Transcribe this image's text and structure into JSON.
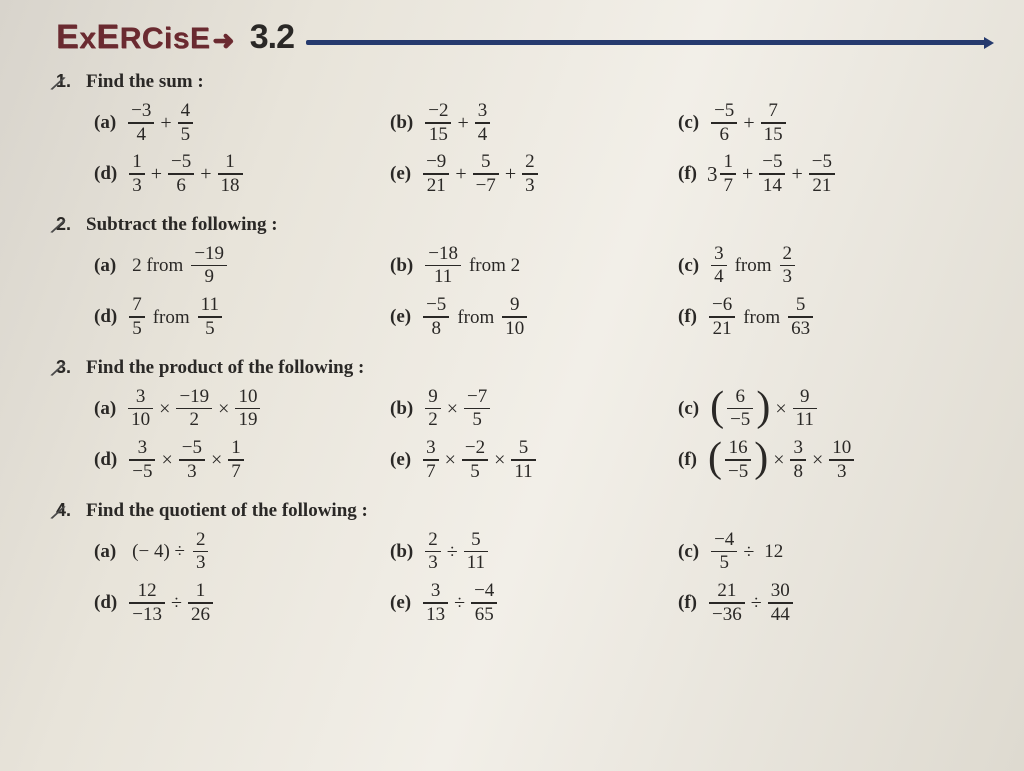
{
  "header": {
    "title_word": "ExERCisE",
    "number": "3.2",
    "title_color": "#6a2a30",
    "rule_color": "#263a6e"
  },
  "questions": [
    {
      "num": "1.",
      "prompt": "Find the sum :",
      "items": [
        {
          "l": "(a)",
          "expr": [
            {
              "t": "frac",
              "n": "−3",
              "d": "4"
            },
            {
              "t": "op",
              "v": "+"
            },
            {
              "t": "frac",
              "n": "4",
              "d": "5"
            }
          ]
        },
        {
          "l": "(b)",
          "expr": [
            {
              "t": "frac",
              "n": "−2",
              "d": "15"
            },
            {
              "t": "op",
              "v": "+"
            },
            {
              "t": "frac",
              "n": "3",
              "d": "4"
            }
          ]
        },
        {
          "l": "(c)",
          "expr": [
            {
              "t": "frac",
              "n": "−5",
              "d": "6"
            },
            {
              "t": "op",
              "v": "+"
            },
            {
              "t": "frac",
              "n": "7",
              "d": "15"
            }
          ]
        },
        {
          "l": "(d)",
          "expr": [
            {
              "t": "frac",
              "n": "1",
              "d": "3"
            },
            {
              "t": "op",
              "v": "+"
            },
            {
              "t": "frac",
              "n": "−5",
              "d": "6"
            },
            {
              "t": "op",
              "v": "+"
            },
            {
              "t": "frac",
              "n": "1",
              "d": "18"
            }
          ]
        },
        {
          "l": "(e)",
          "expr": [
            {
              "t": "frac",
              "n": "−9",
              "d": "21"
            },
            {
              "t": "op",
              "v": "+"
            },
            {
              "t": "frac",
              "n": "5",
              "d": "−7"
            },
            {
              "t": "op",
              "v": "+"
            },
            {
              "t": "frac",
              "n": "2",
              "d": "3"
            }
          ]
        },
        {
          "l": "(f)",
          "expr": [
            {
              "t": "mixed",
              "w": "3",
              "n": "1",
              "d": "7"
            },
            {
              "t": "op",
              "v": "+"
            },
            {
              "t": "frac",
              "n": "−5",
              "d": "14"
            },
            {
              "t": "op",
              "v": "+"
            },
            {
              "t": "frac",
              "n": "−5",
              "d": "21"
            }
          ]
        }
      ]
    },
    {
      "num": "2.",
      "prompt": "Subtract the following :",
      "items": [
        {
          "l": "(a)",
          "expr": [
            {
              "t": "txt",
              "v": "2 from"
            },
            {
              "t": "frac",
              "n": "−19",
              "d": "9"
            }
          ]
        },
        {
          "l": "(b)",
          "expr": [
            {
              "t": "frac",
              "n": "−18",
              "d": "11"
            },
            {
              "t": "txt",
              "v": "from 2"
            }
          ]
        },
        {
          "l": "(c)",
          "expr": [
            {
              "t": "frac",
              "n": "3",
              "d": "4"
            },
            {
              "t": "txt",
              "v": "from"
            },
            {
              "t": "frac",
              "n": "2",
              "d": "3"
            }
          ]
        },
        {
          "l": "(d)",
          "expr": [
            {
              "t": "frac",
              "n": "7",
              "d": "5"
            },
            {
              "t": "txt",
              "v": "from"
            },
            {
              "t": "frac",
              "n": "11",
              "d": "5"
            }
          ]
        },
        {
          "l": "(e)",
          "expr": [
            {
              "t": "frac",
              "n": "−5",
              "d": "8"
            },
            {
              "t": "txt",
              "v": "from"
            },
            {
              "t": "frac",
              "n": "9",
              "d": "10"
            }
          ]
        },
        {
          "l": "(f)",
          "expr": [
            {
              "t": "frac",
              "n": "−6",
              "d": "21"
            },
            {
              "t": "txt",
              "v": "from"
            },
            {
              "t": "frac",
              "n": "5",
              "d": "63"
            }
          ]
        }
      ]
    },
    {
      "num": "3.",
      "prompt": "Find the product of the following :",
      "items": [
        {
          "l": "(a)",
          "expr": [
            {
              "t": "frac",
              "n": "3",
              "d": "10"
            },
            {
              "t": "op",
              "v": "×"
            },
            {
              "t": "frac",
              "n": "−19",
              "d": "2"
            },
            {
              "t": "op",
              "v": "×"
            },
            {
              "t": "frac",
              "n": "10",
              "d": "19"
            }
          ]
        },
        {
          "l": "(b)",
          "expr": [
            {
              "t": "frac",
              "n": "9",
              "d": "2"
            },
            {
              "t": "op",
              "v": "×"
            },
            {
              "t": "frac",
              "n": "−7",
              "d": "5"
            }
          ]
        },
        {
          "l": "(c)",
          "expr": [
            {
              "t": "lparen"
            },
            {
              "t": "frac",
              "n": "6",
              "d": "−5"
            },
            {
              "t": "rparen"
            },
            {
              "t": "op",
              "v": "×"
            },
            {
              "t": "frac",
              "n": "9",
              "d": "11"
            }
          ]
        },
        {
          "l": "(d)",
          "expr": [
            {
              "t": "frac",
              "n": "3",
              "d": "−5"
            },
            {
              "t": "op",
              "v": "×"
            },
            {
              "t": "frac",
              "n": "−5",
              "d": "3"
            },
            {
              "t": "op",
              "v": "×"
            },
            {
              "t": "frac",
              "n": "1",
              "d": "7"
            }
          ]
        },
        {
          "l": "(e)",
          "expr": [
            {
              "t": "frac",
              "n": "3",
              "d": "7"
            },
            {
              "t": "op",
              "v": "×"
            },
            {
              "t": "frac",
              "n": "−2",
              "d": "5"
            },
            {
              "t": "op",
              "v": "×"
            },
            {
              "t": "frac",
              "n": "5",
              "d": "11"
            }
          ]
        },
        {
          "l": "(f)",
          "expr": [
            {
              "t": "lparen"
            },
            {
              "t": "frac",
              "n": "16",
              "d": "−5"
            },
            {
              "t": "rparen"
            },
            {
              "t": "op",
              "v": "×"
            },
            {
              "t": "frac",
              "n": "3",
              "d": "8"
            },
            {
              "t": "op",
              "v": "×"
            },
            {
              "t": "frac",
              "n": "10",
              "d": "3"
            }
          ]
        }
      ]
    },
    {
      "num": "4.",
      "prompt": "Find the quotient of the following :",
      "items": [
        {
          "l": "(a)",
          "expr": [
            {
              "t": "txt",
              "v": "(− 4) ÷"
            },
            {
              "t": "frac",
              "n": "2",
              "d": "3"
            }
          ]
        },
        {
          "l": "(b)",
          "expr": [
            {
              "t": "frac",
              "n": "2",
              "d": "3"
            },
            {
              "t": "op",
              "v": "÷"
            },
            {
              "t": "frac",
              "n": "5",
              "d": "11"
            }
          ]
        },
        {
          "l": "(c)",
          "expr": [
            {
              "t": "frac",
              "n": "−4",
              "d": "5"
            },
            {
              "t": "op",
              "v": "÷"
            },
            {
              "t": "txt",
              "v": "12"
            }
          ]
        },
        {
          "l": "(d)",
          "expr": [
            {
              "t": "frac",
              "n": "12",
              "d": "−13"
            },
            {
              "t": "op",
              "v": "÷"
            },
            {
              "t": "frac",
              "n": "1",
              "d": "26"
            }
          ]
        },
        {
          "l": "(e)",
          "expr": [
            {
              "t": "frac",
              "n": "3",
              "d": "13"
            },
            {
              "t": "op",
              "v": "÷"
            },
            {
              "t": "frac",
              "n": "−4",
              "d": "65"
            }
          ]
        },
        {
          "l": "(f)",
          "expr": [
            {
              "t": "frac",
              "n": "21",
              "d": "−36"
            },
            {
              "t": "op",
              "v": "÷"
            },
            {
              "t": "frac",
              "n": "30",
              "d": "44"
            }
          ]
        }
      ]
    }
  ]
}
